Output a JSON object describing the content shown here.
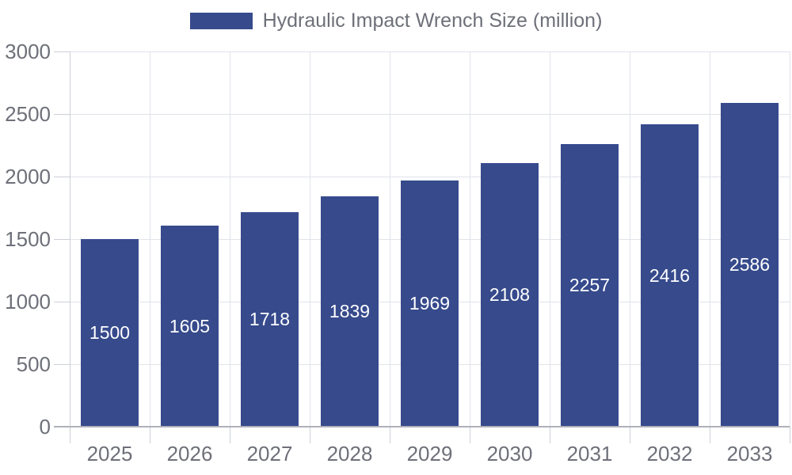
{
  "chart_data": {
    "type": "bar",
    "title": "Hydraulic Impact Wrench Size (million)",
    "legend_label": "Hydraulic Impact Wrench Size (million)",
    "legend_position": "top-center",
    "categories": [
      "2025",
      "2026",
      "2027",
      "2028",
      "2029",
      "2030",
      "2031",
      "2032",
      "2033"
    ],
    "series": [
      {
        "name": "Hydraulic Impact Wrench Size (million)",
        "values": [
          1500,
          1605,
          1718,
          1839,
          1969,
          2108,
          2257,
          2416,
          2586
        ]
      }
    ],
    "value_label_position": "inside-center",
    "xlabel": "",
    "ylabel": "",
    "ylim": [
      0,
      3000
    ],
    "yticks": [
      0,
      500,
      1000,
      1500,
      2000,
      2500,
      3000
    ],
    "grid": true,
    "colors": {
      "bar": "#364a8c",
      "value_label": "#ffffff",
      "axis_text": "#6e7079",
      "legend_text": "#6e7079",
      "grid_line": "#e0e3ea",
      "axis_line_x": "#aeb2b8",
      "axis_line_y": "#ccd0d7",
      "tick": "#ccd0d7",
      "background": "#ffffff"
    }
  }
}
